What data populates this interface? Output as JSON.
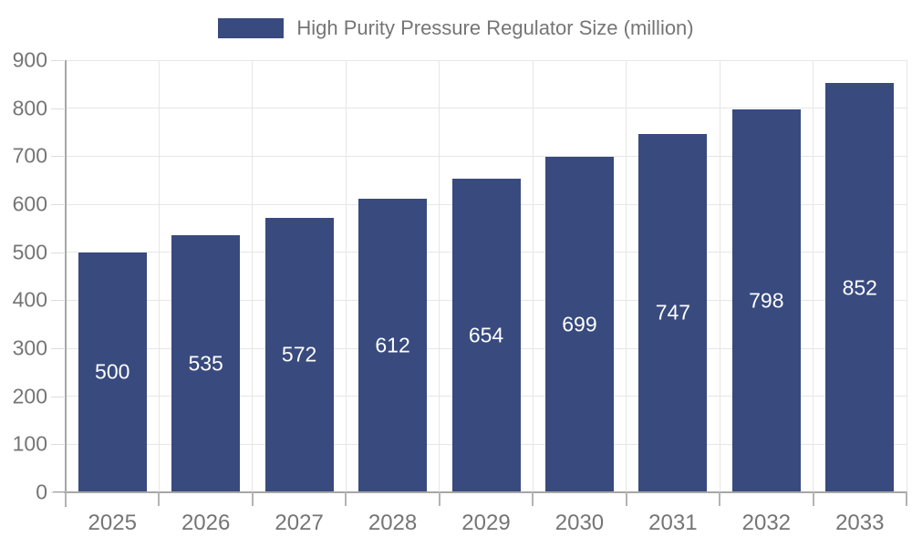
{
  "chart_data": {
    "type": "bar",
    "title": "High Purity Pressure Regulator Size (million)",
    "categories": [
      "2025",
      "2026",
      "2027",
      "2028",
      "2029",
      "2030",
      "2031",
      "2032",
      "2033"
    ],
    "values": [
      500,
      535,
      572,
      612,
      654,
      699,
      747,
      798,
      852
    ],
    "xlabel": "",
    "ylabel": "",
    "ylim": [
      0,
      900
    ],
    "y_ticks": [
      0,
      100,
      200,
      300,
      400,
      500,
      600,
      700,
      800,
      900
    ],
    "grid": true,
    "legend_position": "top-center",
    "value_labels": "centered-inside-bars",
    "colors": {
      "bar": "#384a7e",
      "value_label": "#ffffff",
      "axis_text": "#757575",
      "axis_line": "#a6a6a6",
      "gridline": "#e6e6e6",
      "background": "#ffffff"
    }
  }
}
